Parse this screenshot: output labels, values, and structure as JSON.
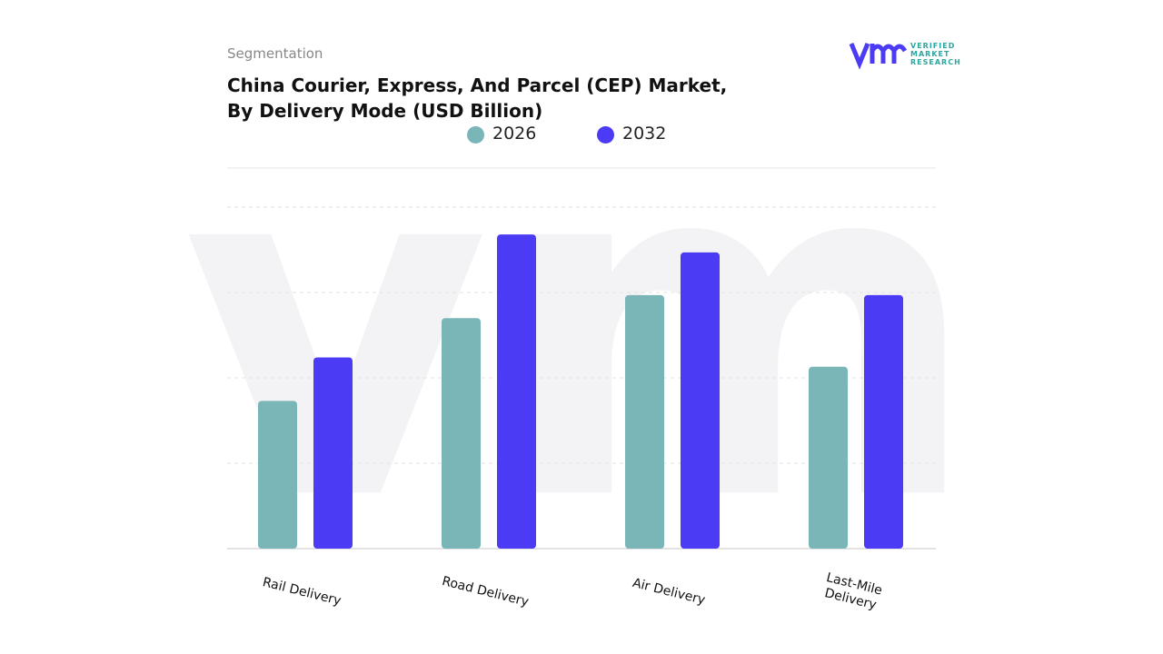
{
  "chart_data": {
    "type": "bar",
    "subtitle": "Segmentation",
    "title": [
      "China Courier, Express, And Parcel (CEP) Market,",
      "By Delivery Mode (USD Billion)"
    ],
    "categories": [
      "Rail Delivery",
      "Road Delivery",
      "Air Delivery",
      "Last-Mile Delivery"
    ],
    "series": [
      {
        "name": "2026",
        "color": "#7ab5b8",
        "values": [
          1.73,
          2.7,
          2.97,
          2.13
        ]
      },
      {
        "name": "2032",
        "color": "#4b3bf5",
        "values": [
          2.24,
          3.68,
          3.47,
          2.97
        ]
      }
    ],
    "ylim": [
      0,
      4.5
    ],
    "yticks": [
      0,
      1,
      2,
      3,
      4
    ],
    "grid": true
  },
  "logo": {
    "lines": [
      "VERIFIED",
      "MARKET",
      "RESEARCH"
    ]
  }
}
